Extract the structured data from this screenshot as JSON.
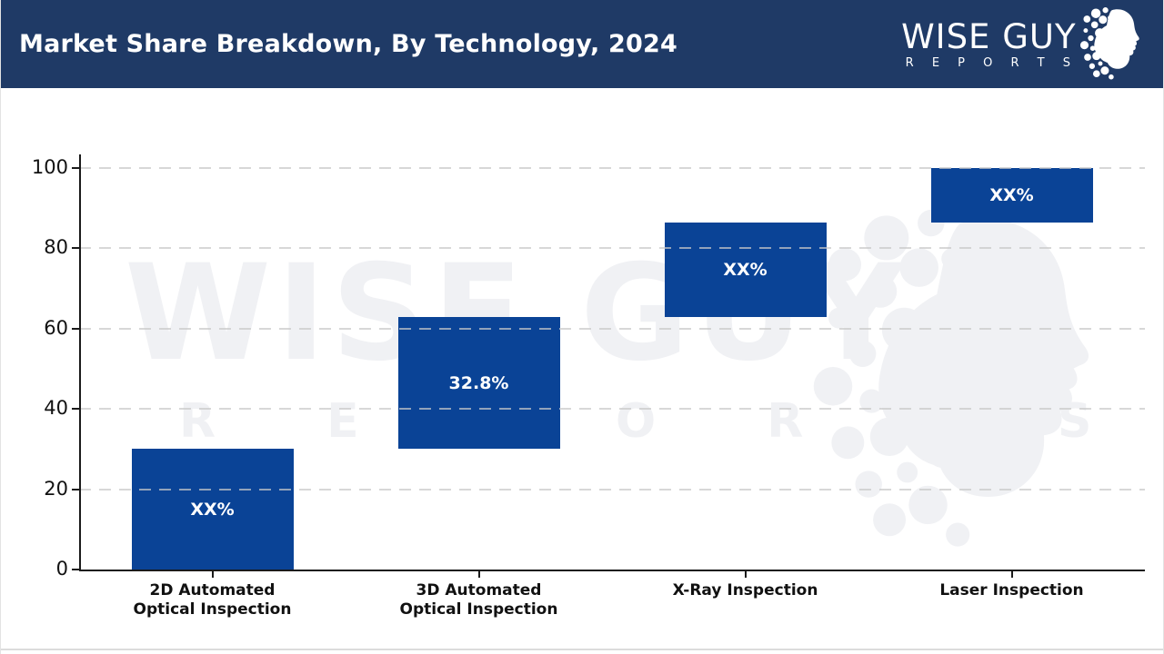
{
  "header": {
    "title": "Market Share Breakdown, By Technology, 2024",
    "bg_color": "#1f3a66",
    "logo": {
      "line1": "WISE GUY",
      "line2": "R E P O R T S"
    }
  },
  "watermark": {
    "line1": "WISE GUY",
    "line2": "R E P O R T S"
  },
  "chart_data": {
    "type": "bar",
    "subtype": "floating-waterfall",
    "title": "Market Share Breakdown, By Technology, 2024",
    "xlabel": "",
    "ylabel": "",
    "ylim": [
      0,
      100
    ],
    "yticks": [
      0,
      20,
      40,
      60,
      80,
      100
    ],
    "grid": "dashed-horizontal",
    "bar_color": "#0a4396",
    "label_color": "#ffffff",
    "bars": [
      {
        "category": "2D Automated\nOptical Inspection",
        "label": "XX%",
        "start": 0,
        "end": 30
      },
      {
        "category": "3D Automated\nOptical Inspection",
        "label": "32.8%",
        "start": 30,
        "end": 62.8
      },
      {
        "category": "X-Ray Inspection",
        "label": "XX%",
        "start": 62.8,
        "end": 86.5
      },
      {
        "category": "Laser Inspection",
        "label": "XX%",
        "start": 86.5,
        "end": 100
      }
    ]
  }
}
